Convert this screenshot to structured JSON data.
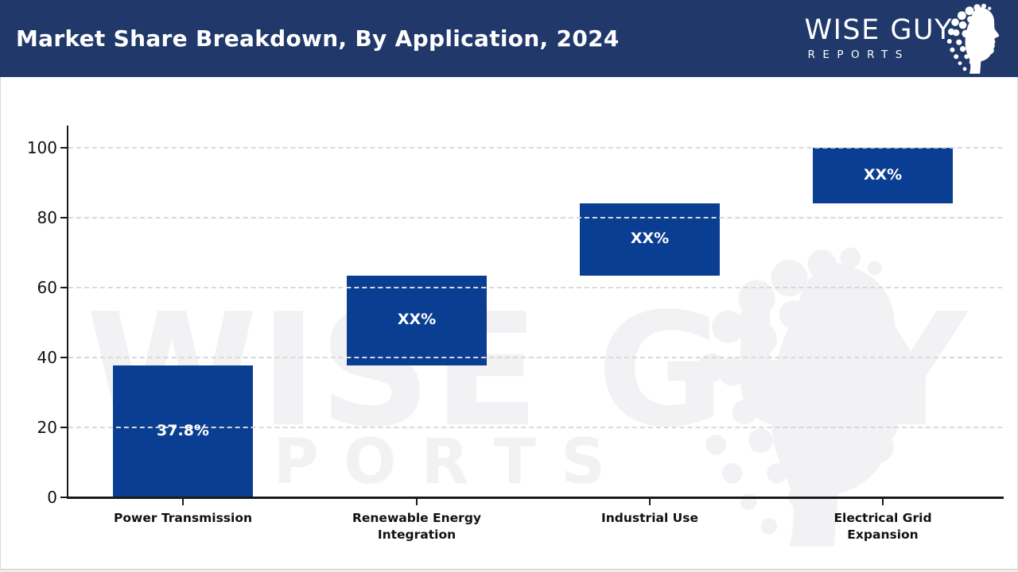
{
  "header": {
    "title": "Market Share Breakdown, By Application, 2024",
    "brand": {
      "name": "WISE GUY",
      "subtitle": "REPORTS"
    }
  },
  "watermark": {
    "line1": "WISE GUY",
    "line2": "R E P O R T S"
  },
  "colors": {
    "header_bg": "#20386a",
    "bar_fill": "#0a3e92",
    "bar_label_text": "#ffffff",
    "gridline": "#d9d9d9",
    "axis": "#1a1a1a",
    "tick_label": "#111111",
    "watermark": "#f2f2f4"
  },
  "chart_data": {
    "type": "bar",
    "subtype": "waterfall",
    "title": "Market Share Breakdown, By Application, 2024",
    "categories": [
      "Power Transmission",
      "Renewable Energy Integration",
      "Industrial Use",
      "Electrical Grid Expansion"
    ],
    "series": [
      {
        "name": "Market share (%)",
        "segments": [
          {
            "category": "Power Transmission",
            "start": 0,
            "end": 37.8,
            "label": "37.8%"
          },
          {
            "category": "Renewable Energy Integration",
            "start": 37.8,
            "end": 63.5,
            "label": "XX%"
          },
          {
            "category": "Industrial Use",
            "start": 63.5,
            "end": 84.2,
            "label": "XX%"
          },
          {
            "category": "Electrical Grid Expansion",
            "start": 84.2,
            "end": 100,
            "label": "XX%"
          }
        ]
      }
    ],
    "xlabel": "",
    "ylabel": "",
    "ylim": [
      0,
      100
    ],
    "yticks": [
      0,
      20,
      40,
      60,
      80,
      100
    ],
    "grid": "horizontal-dashed",
    "legend": "none"
  }
}
